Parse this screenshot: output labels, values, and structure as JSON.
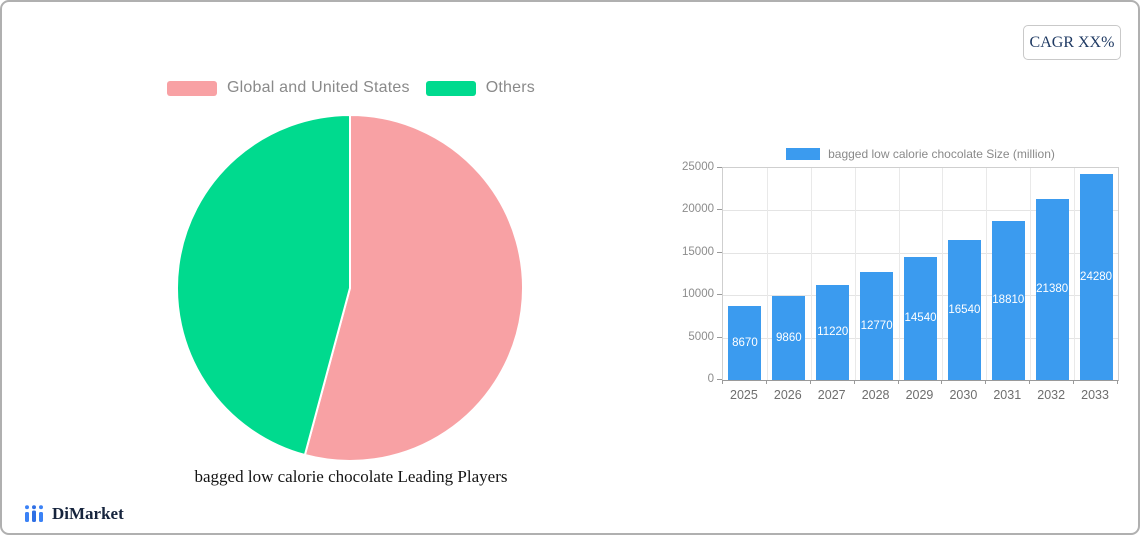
{
  "header": {
    "cagr_label": "CAGR XX%"
  },
  "footer": {
    "brand": "DiMarket"
  },
  "colors": {
    "pie_pink": "#f8a1a4",
    "pie_green": "#00da8e",
    "bar_blue": "#3b9bef",
    "grid": "#e4e4e4",
    "axis": "#9a9a9a"
  },
  "chart_data": [
    {
      "type": "pie",
      "title": "bagged low calorie chocolate Leading Players",
      "legend_position": "top",
      "start_angle_deg": 0,
      "slices": [
        {
          "label": "Global and United States",
          "value": 54.2,
          "color": "#f8a1a4"
        },
        {
          "label": "Others",
          "value": 45.8,
          "color": "#00da8e"
        }
      ]
    },
    {
      "type": "bar",
      "series_label": "bagged low calorie chocolate Size (million)",
      "categories": [
        "2025",
        "2026",
        "2027",
        "2028",
        "2029",
        "2030",
        "2031",
        "2032",
        "2033"
      ],
      "values": [
        8670,
        9860,
        11220,
        12770,
        14540,
        16540,
        18810,
        21380,
        24280
      ],
      "bar_color": "#3b9bef",
      "ylim": [
        0,
        25000
      ],
      "yticks": [
        0,
        5000,
        10000,
        15000,
        20000,
        25000
      ],
      "grid": true,
      "value_labels": "inside-white",
      "legend_position": "top"
    }
  ]
}
